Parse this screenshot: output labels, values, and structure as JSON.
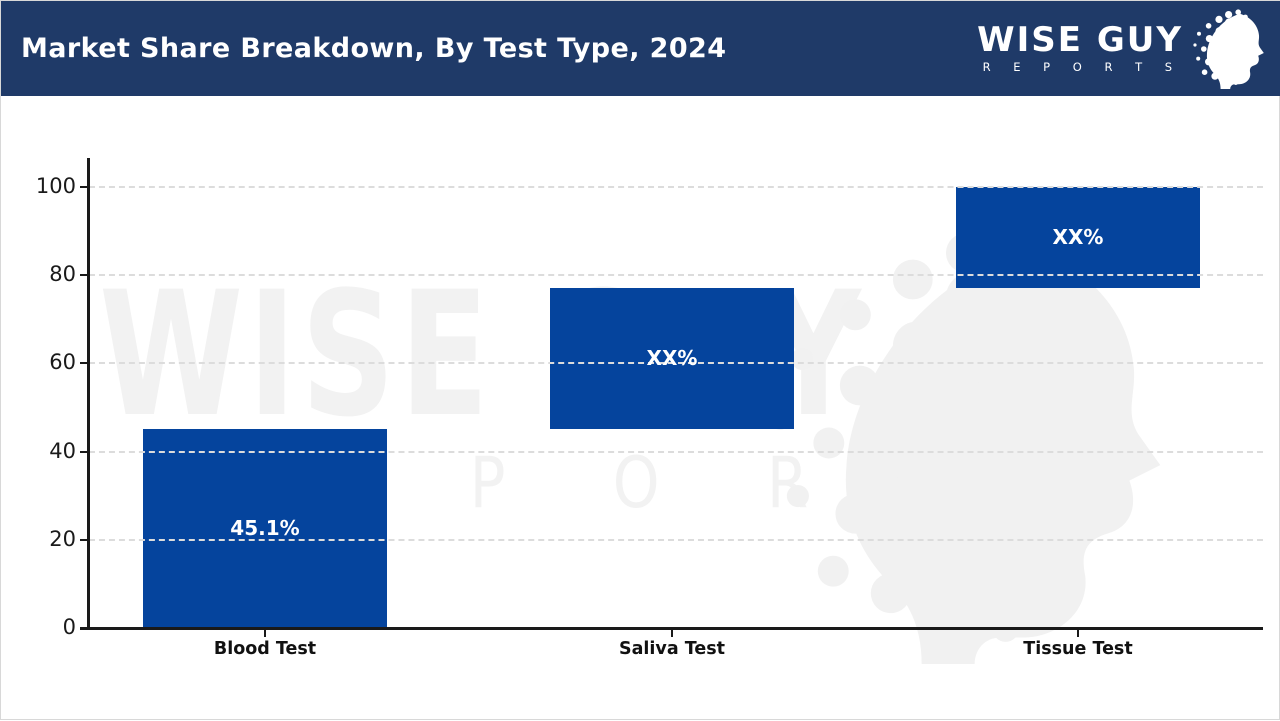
{
  "header": {
    "title": "Market Share Breakdown, By Test Type, 2024",
    "logo": {
      "line1": "WISE GUY",
      "line2": "R E P O R T S"
    }
  },
  "watermark": {
    "line1": "WISE GUY",
    "line2": "R E P O R T S"
  },
  "chart_data": {
    "type": "bar",
    "subtype": "waterfall",
    "title": "Market Share Breakdown, By Test Type, 2024",
    "categories": [
      "Blood Test",
      "Saliva Test",
      "Tissue Test"
    ],
    "segments": [
      {
        "category": "Blood Test",
        "start": 0,
        "end": 45.1,
        "label": "45.1%"
      },
      {
        "category": "Saliva Test",
        "start": 45.1,
        "end": 77.1,
        "label": "XX%"
      },
      {
        "category": "Tissue Test",
        "start": 77.1,
        "end": 100,
        "label": "XX%"
      }
    ],
    "ylabel": "",
    "xlabel": "",
    "yticks": [
      0,
      20,
      40,
      60,
      80,
      100
    ],
    "ylim": [
      0,
      105
    ],
    "grid": "horizontal-dashed-over-bars",
    "legend": "none",
    "bar_color": "#05449d",
    "gridline_color": "#dcdcdc",
    "axis_color": "#1a1a1a",
    "label_color_inside_bar": "#ffffff",
    "background": "#ffffff"
  },
  "colors": {
    "header_bg": "#1f3a68",
    "header_text": "#ffffff",
    "watermark": "#f2f2f2",
    "page_border": "#d8d8d8"
  }
}
